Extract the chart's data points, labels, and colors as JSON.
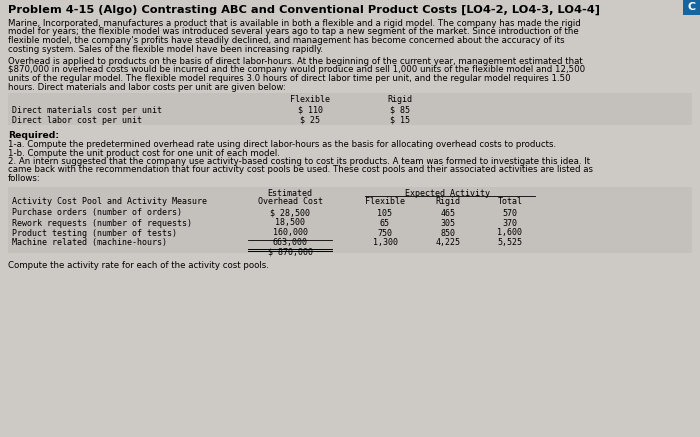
{
  "title": "Problem 4-15 (Algo) Contrasting ABC and Conventional Product Costs [LO4-2, LO4-3, LO4-4]",
  "bg_color": "#cdc9c5",
  "para1_lines": [
    "Marine, Incorporated, manufactures a product that is available in both a flexible and a rigid model. The company has made the rigid",
    "model for years; the flexible model was introduced several years ago to tap a new segment of the market. Since introduction of the",
    "flexible model, the company's profits have steadily declined, and management has become concerned about the accuracy of its",
    "costing system. Sales of the flexible model have been increasing rapidly."
  ],
  "para2_lines": [
    "Overhead is applied to products on the basis of direct labor-hours. At the beginning of the current year, management estimated that",
    "$870,000 in overhead costs would be incurred and the company would produce and sell 1,000 units of the flexible model and 12,500",
    "units of the regular model. The flexible model requires 3.0 hours of direct labor time per unit, and the regular model requires 1.50",
    "hours. Direct materials and labor costs per unit are given below:"
  ],
  "table1_rows": [
    [
      "Direct materials cost per unit",
      "$ 110",
      "$ 85"
    ],
    [
      "Direct labor cost per unit",
      "$ 25",
      "$ 15"
    ]
  ],
  "required_label": "Required:",
  "req1a": "1-a. Compute the predetermined overhead rate using direct labor-hours as the basis for allocating overhead costs to products.",
  "req1b": "1-b. Compute the unit product cost for one unit of each model.",
  "req2_lines": [
    "2. An intern suggested that the company use activity-based costing to cost its products. A team was formed to investigate this idea. It",
    "came back with the recommendation that four activity cost pools be used. These cost pools and their associated activities are listed as",
    "follows:"
  ],
  "table2_col_header1": [
    "",
    "Estimated",
    "Expected Activity"
  ],
  "table2_col_header2": [
    "Activity Cost Pool and Activity Measure",
    "Overhead Cost Flexible",
    "Rigid",
    "Total"
  ],
  "table2_rows": [
    [
      "Purchase orders (number of orders)",
      "$ 28,500",
      "105",
      "465",
      "570"
    ],
    [
      "Rework requests (number of requests)",
      "18,500",
      "65",
      "305",
      "370"
    ],
    [
      "Product testing (number of tests)",
      "160,000",
      "750",
      "850",
      "1,600"
    ],
    [
      "Machine related (machine-hours)",
      "663,000",
      "1,300",
      "4,225",
      "5,525"
    ]
  ],
  "table2_total": "$ 870,000",
  "footer": "Compute the activity rate for each of the activity cost pools.",
  "corner_color": "#1565a0",
  "corner_letter": "C",
  "table_bg": "#c4c0bc",
  "font_small": 6.2,
  "font_mono": 6.0
}
